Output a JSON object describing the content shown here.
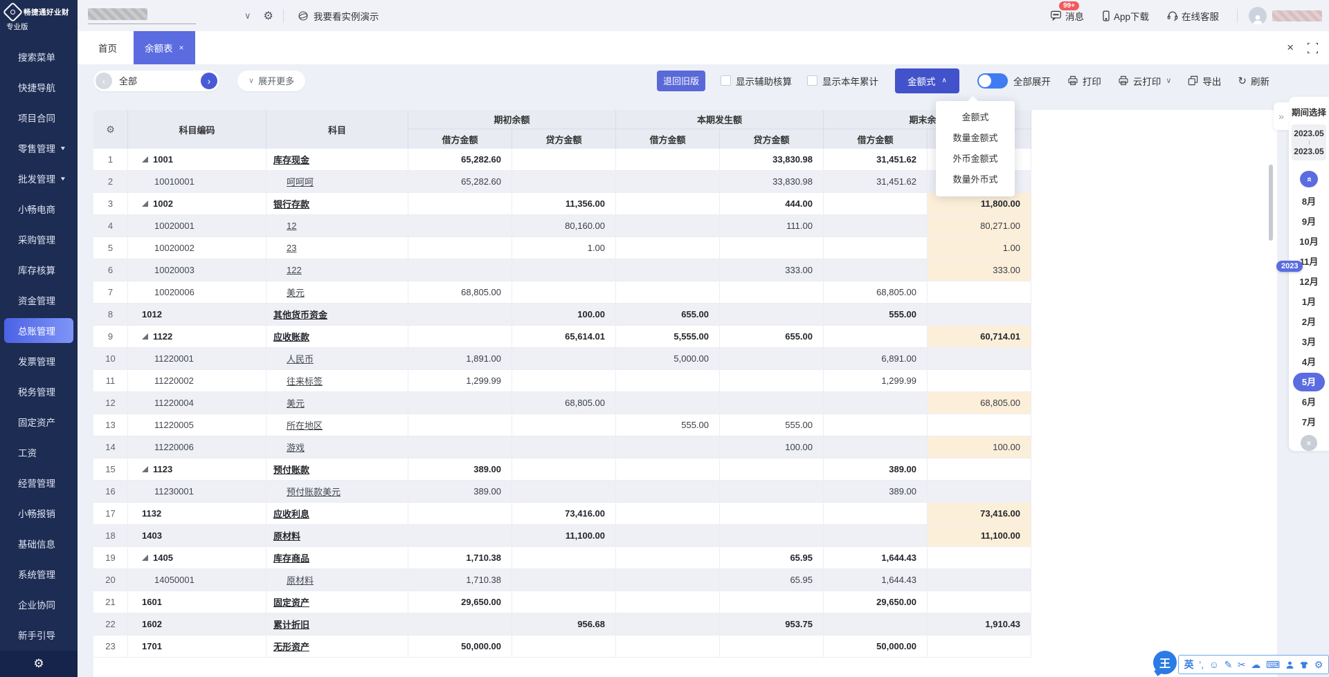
{
  "colors": {
    "accent": "#5b6ce0",
    "sidebar": "#1d2c52",
    "warn_cell": "#fcefd9",
    "badge": "#f25a5a",
    "toggle_on": "#3f7cf2",
    "ime_blue": "#3a7de0"
  },
  "topbar": {
    "logo_title": "畅捷通好业财",
    "logo_subtitle": "专业版",
    "demo_link": "我要看实例演示",
    "messages_label": "消息",
    "messages_badge": "99+",
    "app_download_label": "App下载",
    "support_label": "在线客服"
  },
  "sidebar": {
    "items": [
      {
        "label": "搜索菜单"
      },
      {
        "label": "快捷导航"
      },
      {
        "label": "项目合同"
      },
      {
        "label": "零售管理",
        "arrow": true
      },
      {
        "label": "批发管理",
        "arrow": true
      },
      {
        "label": "小畅电商"
      },
      {
        "label": "采购管理"
      },
      {
        "label": "库存核算"
      },
      {
        "label": "资金管理"
      },
      {
        "label": "总账管理",
        "active": true
      },
      {
        "label": "发票管理"
      },
      {
        "label": "税务管理"
      },
      {
        "label": "固定资产"
      },
      {
        "label": "工资"
      },
      {
        "label": "经营管理"
      },
      {
        "label": "小畅报销"
      },
      {
        "label": "基础信息"
      },
      {
        "label": "系统管理"
      },
      {
        "label": "企业协同"
      },
      {
        "label": "新手引导"
      }
    ]
  },
  "tabs": {
    "home": "首页",
    "current": "余额表"
  },
  "toolbar": {
    "filter_all": "全部",
    "expand_more": "展开更多",
    "back_old": "退回旧版",
    "cb_aux": "显示辅助核算",
    "cb_ytd": "显示本年累计",
    "format_btn": "金额式",
    "toggle_label": "全部展开",
    "print": "打印",
    "cloud_print": "云打印",
    "export": "导出",
    "refresh": "刷新"
  },
  "format_menu": {
    "items": [
      "金额式",
      "数量金额式",
      "外币金额式",
      "数量外币式"
    ]
  },
  "table": {
    "header": {
      "code": "科目编码",
      "subject": "科目",
      "groups": [
        {
          "label": "期初余额"
        },
        {
          "label": "本期发生额"
        },
        {
          "label": "期末余额"
        }
      ],
      "sub_debit": "借方金额",
      "sub_credit": "贷方金额"
    },
    "rows": [
      {
        "num": 1,
        "code": "1001",
        "name": "库存现金",
        "level": "p",
        "tree": true,
        "bold": true,
        "oj": "65,282.60",
        "oc": "",
        "cj": "",
        "cc": "33,830.98",
        "ej": "31,451.62",
        "ec": "",
        "warn": false
      },
      {
        "num": 2,
        "code": "10010001",
        "name": "呵呵呵",
        "level": "c",
        "tree": false,
        "bold": false,
        "oj": "65,282.60",
        "oc": "",
        "cj": "",
        "cc": "33,830.98",
        "ej": "31,451.62",
        "ec": "",
        "warn": false
      },
      {
        "num": 3,
        "code": "1002",
        "name": "银行存款",
        "level": "p",
        "tree": true,
        "bold": true,
        "oj": "",
        "oc": "11,356.00",
        "cj": "",
        "cc": "444.00",
        "ej": "",
        "ec": "11,800.00",
        "warn": true
      },
      {
        "num": 4,
        "code": "10020001",
        "name": "12",
        "level": "c",
        "tree": false,
        "bold": false,
        "oj": "",
        "oc": "80,160.00",
        "cj": "",
        "cc": "111.00",
        "ej": "",
        "ec": "80,271.00",
        "warn": true
      },
      {
        "num": 5,
        "code": "10020002",
        "name": "23",
        "level": "c",
        "tree": false,
        "bold": false,
        "oj": "",
        "oc": "1.00",
        "cj": "",
        "cc": "",
        "ej": "",
        "ec": "1.00",
        "warn": true
      },
      {
        "num": 6,
        "code": "10020003",
        "name": "122",
        "level": "c",
        "tree": false,
        "bold": false,
        "oj": "",
        "oc": "",
        "cj": "",
        "cc": "333.00",
        "ej": "",
        "ec": "333.00",
        "warn": true
      },
      {
        "num": 7,
        "code": "10020006",
        "name": "美元",
        "level": "c",
        "tree": false,
        "bold": false,
        "oj": "68,805.00",
        "oc": "",
        "cj": "",
        "cc": "",
        "ej": "68,805.00",
        "ec": "",
        "warn": false
      },
      {
        "num": 8,
        "code": "1012",
        "name": "其他货币资金",
        "level": "p",
        "tree": false,
        "bold": true,
        "oj": "",
        "oc": "100.00",
        "cj": "655.00",
        "cc": "",
        "ej": "555.00",
        "ec": "",
        "warn": false
      },
      {
        "num": 9,
        "code": "1122",
        "name": "应收账款",
        "level": "p",
        "tree": true,
        "bold": true,
        "oj": "",
        "oc": "65,614.01",
        "cj": "5,555.00",
        "cc": "655.00",
        "ej": "",
        "ec": "60,714.01",
        "warn": true
      },
      {
        "num": 10,
        "code": "11220001",
        "name": "人民币",
        "level": "c",
        "tree": false,
        "bold": false,
        "oj": "1,891.00",
        "oc": "",
        "cj": "5,000.00",
        "cc": "",
        "ej": "6,891.00",
        "ec": "",
        "warn": false
      },
      {
        "num": 11,
        "code": "11220002",
        "name": "往来标签",
        "level": "c",
        "tree": false,
        "bold": false,
        "oj": "1,299.99",
        "oc": "",
        "cj": "",
        "cc": "",
        "ej": "1,299.99",
        "ec": "",
        "warn": false
      },
      {
        "num": 12,
        "code": "11220004",
        "name": "美元",
        "level": "c",
        "tree": false,
        "bold": false,
        "oj": "",
        "oc": "68,805.00",
        "cj": "",
        "cc": "",
        "ej": "",
        "ec": "68,805.00",
        "warn": true
      },
      {
        "num": 13,
        "code": "11220005",
        "name": "所在地区",
        "level": "c",
        "tree": false,
        "bold": false,
        "oj": "",
        "oc": "",
        "cj": "555.00",
        "cc": "555.00",
        "ej": "",
        "ec": "",
        "warn": false
      },
      {
        "num": 14,
        "code": "11220006",
        "name": "游戏",
        "level": "c",
        "tree": false,
        "bold": false,
        "oj": "",
        "oc": "",
        "cj": "",
        "cc": "100.00",
        "ej": "",
        "ec": "100.00",
        "warn": true
      },
      {
        "num": 15,
        "code": "1123",
        "name": "预付账款",
        "level": "p",
        "tree": true,
        "bold": true,
        "oj": "389.00",
        "oc": "",
        "cj": "",
        "cc": "",
        "ej": "389.00",
        "ec": "",
        "warn": false
      },
      {
        "num": 16,
        "code": "11230001",
        "name": "预付账款美元",
        "level": "c",
        "tree": false,
        "bold": false,
        "oj": "389.00",
        "oc": "",
        "cj": "",
        "cc": "",
        "ej": "389.00",
        "ec": "",
        "warn": false
      },
      {
        "num": 17,
        "code": "1132",
        "name": "应收利息",
        "level": "p",
        "tree": false,
        "bold": true,
        "oj": "",
        "oc": "73,416.00",
        "cj": "",
        "cc": "",
        "ej": "",
        "ec": "73,416.00",
        "warn": true
      },
      {
        "num": 18,
        "code": "1403",
        "name": "原材料",
        "level": "p",
        "tree": false,
        "bold": true,
        "oj": "",
        "oc": "11,100.00",
        "cj": "",
        "cc": "",
        "ej": "",
        "ec": "11,100.00",
        "warn": true
      },
      {
        "num": 19,
        "code": "1405",
        "name": "库存商品",
        "level": "p",
        "tree": true,
        "bold": true,
        "oj": "1,710.38",
        "oc": "",
        "cj": "",
        "cc": "65.95",
        "ej": "1,644.43",
        "ec": "",
        "warn": false
      },
      {
        "num": 20,
        "code": "14050001",
        "name": "原材料",
        "level": "c",
        "tree": false,
        "bold": false,
        "oj": "1,710.38",
        "oc": "",
        "cj": "",
        "cc": "65.95",
        "ej": "1,644.43",
        "ec": "",
        "warn": false
      },
      {
        "num": 21,
        "code": "1601",
        "name": "固定资产",
        "level": "p",
        "tree": false,
        "bold": true,
        "oj": "29,650.00",
        "oc": "",
        "cj": "",
        "cc": "",
        "ej": "29,650.00",
        "ec": "",
        "warn": false
      },
      {
        "num": 22,
        "code": "1602",
        "name": "累计折旧",
        "level": "p",
        "tree": false,
        "bold": true,
        "oj": "",
        "oc": "956.68",
        "cj": "",
        "cc": "953.75",
        "ej": "",
        "ec": "1,910.43",
        "warn": false
      },
      {
        "num": 23,
        "code": "1701",
        "name": "无形资产",
        "level": "p",
        "tree": false,
        "bold": true,
        "oj": "50,000.00",
        "oc": "",
        "cj": "",
        "cc": "",
        "ej": "50,000.00",
        "ec": "",
        "warn": false
      }
    ]
  },
  "period_panel": {
    "title": "期间选择",
    "range_start": "2023.05",
    "range_end": "2023.05",
    "year_tag": "2023",
    "months": [
      {
        "label": "8月"
      },
      {
        "label": "9月"
      },
      {
        "label": "10月"
      },
      {
        "label": "11月"
      },
      {
        "label": "12月"
      },
      {
        "label": "1月"
      },
      {
        "label": "2月"
      },
      {
        "label": "3月"
      },
      {
        "label": "4月"
      },
      {
        "label": "5月",
        "selected": true
      },
      {
        "label": "6月"
      },
      {
        "label": "7月"
      }
    ]
  },
  "ime_bar": {
    "logo": "王",
    "icons": [
      {
        "name": "lang-toggle",
        "glyph": "英"
      },
      {
        "name": "punctuation",
        "glyph": "’,"
      },
      {
        "name": "emoji-icon",
        "glyph": "☺"
      },
      {
        "name": "pencil-icon",
        "glyph": "✎"
      },
      {
        "name": "scissors-icon",
        "glyph": "✂"
      },
      {
        "name": "cloud-icon",
        "glyph": "☁"
      },
      {
        "name": "keyboard-icon",
        "glyph": "⌨"
      },
      {
        "name": "person-icon",
        "svg": "person"
      },
      {
        "name": "shirt-icon",
        "svg": "shirt"
      },
      {
        "name": "gear-icon",
        "glyph": "⚙"
      }
    ]
  }
}
